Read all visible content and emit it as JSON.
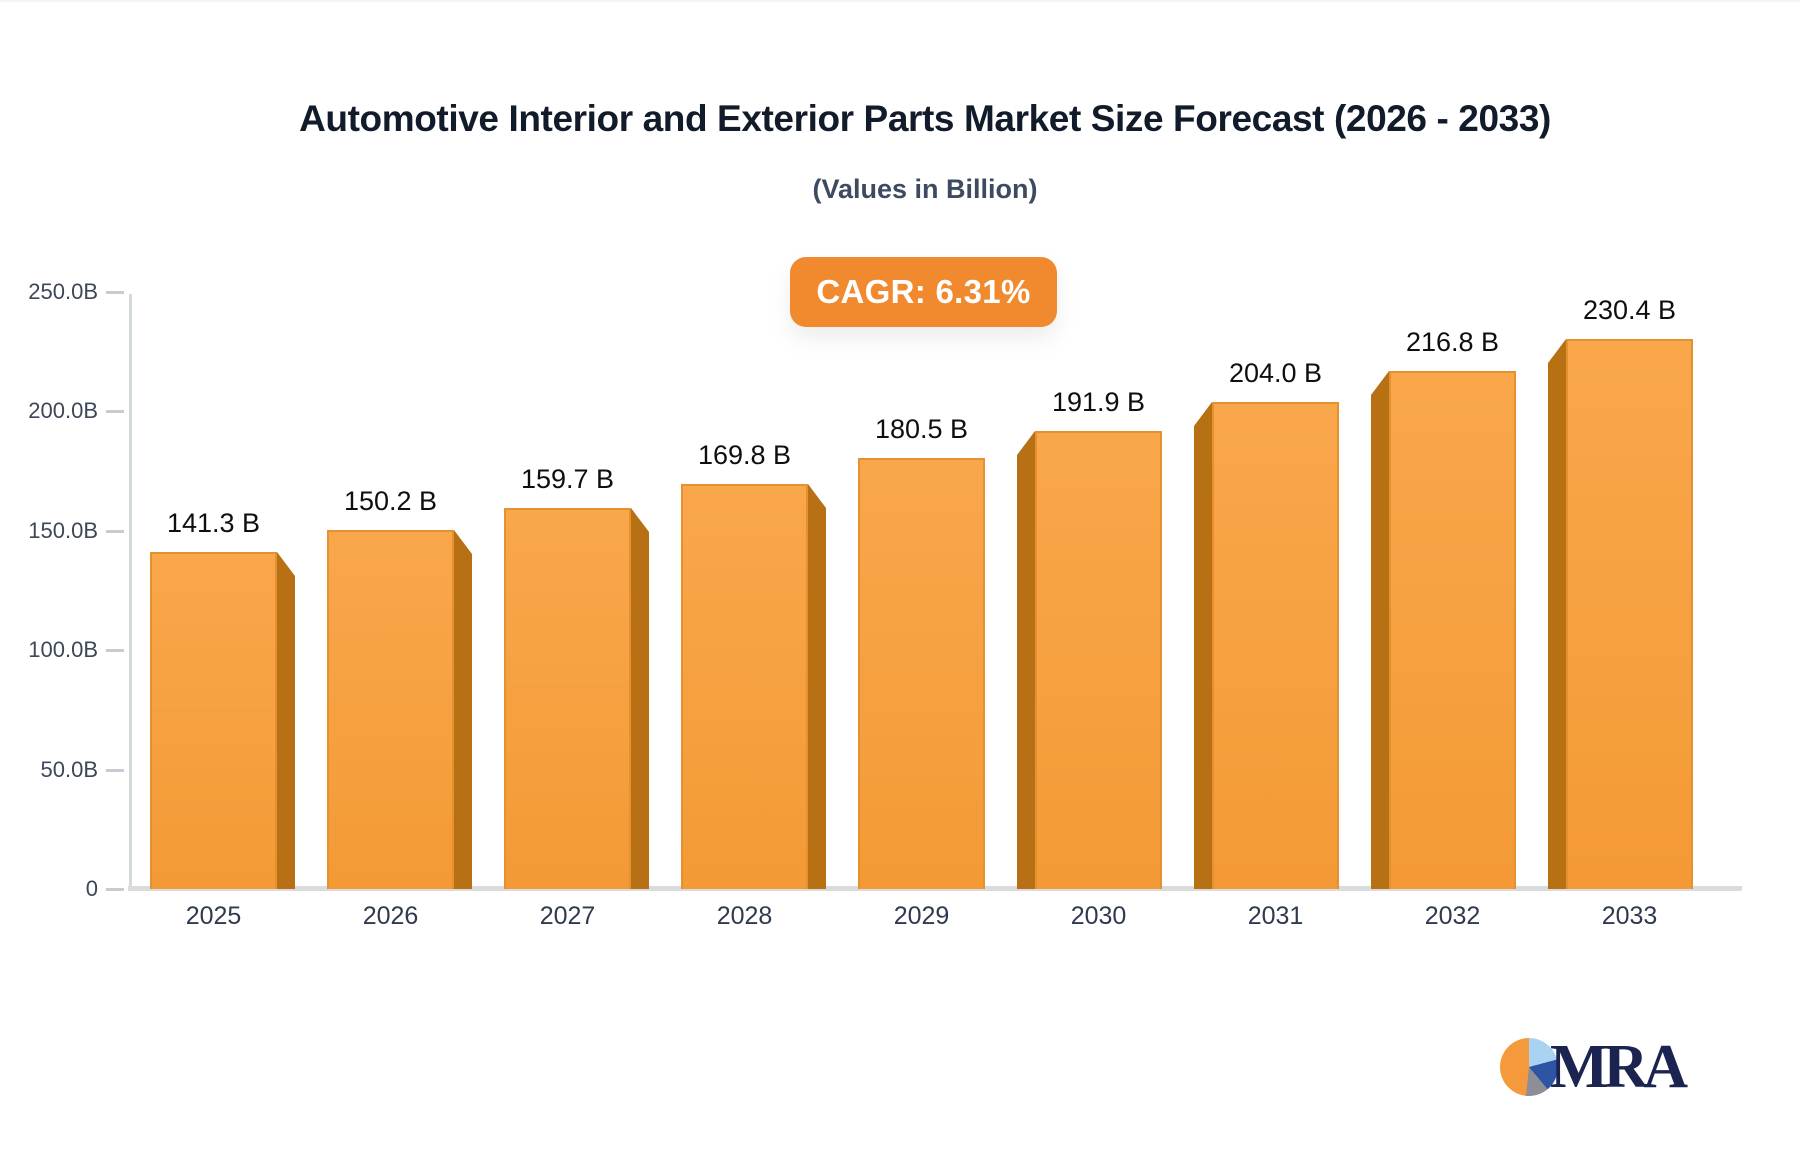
{
  "header": {
    "title": "Automotive Interior and Exterior Parts Market Size Forecast (2026 - 2033)",
    "subtitle": "(Values in Billion)",
    "cagr_label": "CAGR: 6.31%"
  },
  "footer": {
    "logo_text": "MRA"
  },
  "colors": {
    "bar_face": "#F7A140",
    "bar_face_gradient_top": "#F9A74B",
    "bar_face_gradient_bottom": "#F39A36",
    "bar_side": "#B87014",
    "badge_background": "#F18A2E",
    "badge_text": "#FFFFFF",
    "axis_line": "#D4D9DE",
    "axis_label": "#3E4757",
    "year_label": "#2F3A50",
    "value_label": "#0F0F10",
    "logo_navy": "#1B2350",
    "logo_orange": "#F49A3C",
    "logo_light_blue": "#A9D3F0",
    "logo_blue": "#2E55A3",
    "logo_gray": "#8E8E96"
  },
  "chart_data": {
    "type": "bar",
    "title": "Automotive Interior and Exterior Parts Market Size Forecast (2026 - 2033)",
    "subtitle": "(Values in Billion)",
    "annotation": "CAGR: 6.31%",
    "categories": [
      "2025",
      "2026",
      "2027",
      "2028",
      "2029",
      "2030",
      "2031",
      "2032",
      "2033"
    ],
    "values": [
      141.3,
      150.2,
      159.7,
      169.8,
      180.5,
      191.9,
      204.0,
      216.8,
      230.4
    ],
    "value_labels": [
      "141.3 B",
      "150.2 B",
      "159.7 B",
      "169.8 B",
      "180.5 B",
      "191.9 B",
      "204.0 B",
      "216.8 B",
      "230.4 B"
    ],
    "xlabel": "",
    "ylabel": "",
    "ylim": [
      0,
      250
    ],
    "y_ticks": [
      {
        "v": 0,
        "label": "0"
      },
      {
        "v": 50,
        "label": "50.0B"
      },
      {
        "v": 100,
        "label": "100.0B"
      },
      {
        "v": 150,
        "label": "150.0B"
      },
      {
        "v": 200,
        "label": "200.0B"
      },
      {
        "v": 250,
        "label": "250.0B"
      }
    ],
    "grid": false,
    "legend": "none",
    "style": "3d-extruded-bars, perspective toward center"
  }
}
